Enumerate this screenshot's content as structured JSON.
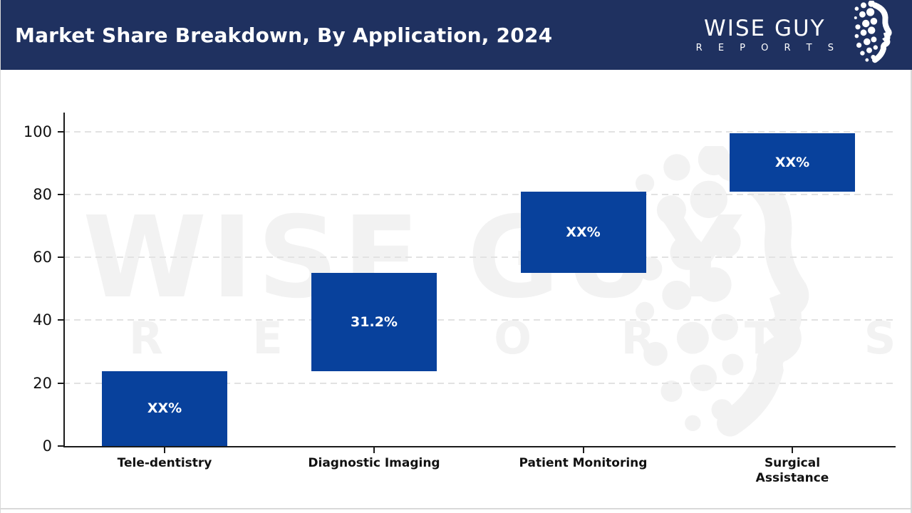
{
  "header": {
    "title": "Market Share Breakdown, By Application, 2024",
    "background": "#1f3160",
    "logo": {
      "line1": "WISE GUY",
      "line2": "R E P O R T S"
    }
  },
  "watermark": {
    "line1": "WISE GUY",
    "line2": "R E P O R T S"
  },
  "chart_data": {
    "type": "bar",
    "subtype": "floating stacked-step bars (waterfall style market share)",
    "title": "Market Share Breakdown, By Application, 2024",
    "xlabel": "",
    "ylabel": "",
    "categories": [
      "Tele-dentistry",
      "Diagnostic Imaging",
      "Patient Monitoring",
      "Surgical\nAssistance"
    ],
    "segments": [
      {
        "category": "Tele-dentistry",
        "start": 0,
        "end": 23.8,
        "label": "XX%"
      },
      {
        "category": "Diagnostic Imaging",
        "start": 23.8,
        "end": 55.0,
        "label": "31.2%"
      },
      {
        "category": "Patient Monitoring",
        "start": 55.0,
        "end": 80.9,
        "label": "XX%"
      },
      {
        "category": "Surgical Assistance",
        "start": 80.9,
        "end": 99.4,
        "label": "XX%"
      }
    ],
    "yticks": [
      0,
      20,
      40,
      60,
      80,
      100
    ],
    "ylim": [
      0,
      106
    ],
    "grid": "horizontal dashed gridlines at each ytick",
    "legend": "none",
    "bar_color": "#08419c",
    "bar_label_color": "#ffffff",
    "gridline_color": "#e2e2e2",
    "axis_color": "#1a1a1a"
  }
}
